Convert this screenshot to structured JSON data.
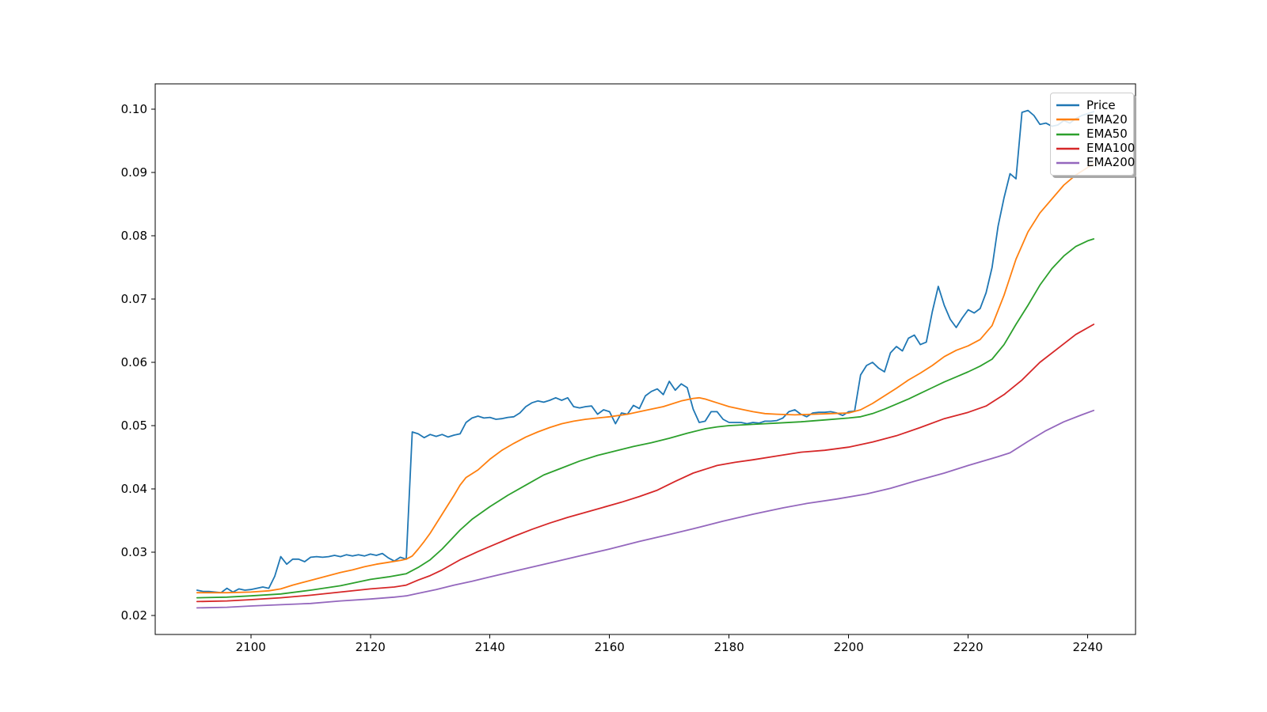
{
  "accent_colors": {
    "price": "#1f77b4",
    "ema20": "#ff7f0e",
    "ema50": "#2ca02c",
    "ema100": "#d62728",
    "ema200": "#9467bd",
    "spine": "#000000",
    "legend_border": "#cccccc"
  },
  "chart_data": {
    "type": "line",
    "title": "",
    "xlabel": "",
    "ylabel": "",
    "grid": false,
    "xlim": [
      2084,
      2248
    ],
    "ylim": [
      0.017,
      0.104
    ],
    "x_ticks": [
      2100,
      2120,
      2140,
      2160,
      2180,
      2200,
      2220,
      2240
    ],
    "x_tick_labels": [
      "2100",
      "2120",
      "2140",
      "2160",
      "2180",
      "2200",
      "2220",
      "2240"
    ],
    "y_ticks": [
      0.02,
      0.03,
      0.04,
      0.05,
      0.06,
      0.07,
      0.08,
      0.09,
      0.1
    ],
    "y_tick_labels": [
      "0.02",
      "0.03",
      "0.04",
      "0.05",
      "0.06",
      "0.07",
      "0.08",
      "0.09",
      "0.10"
    ],
    "legend": {
      "position": "upper right",
      "entries": [
        "Price",
        "EMA20",
        "EMA50",
        "EMA100",
        "EMA200"
      ]
    },
    "series": [
      {
        "name": "Price",
        "color": "#1f77b4",
        "x_start": 2091,
        "x_step": 1,
        "values": [
          0.024,
          0.0238,
          0.0238,
          0.0237,
          0.0236,
          0.0243,
          0.0237,
          0.0242,
          0.024,
          0.0241,
          0.0243,
          0.0245,
          0.0243,
          0.0262,
          0.0293,
          0.0281,
          0.0289,
          0.0289,
          0.0285,
          0.0292,
          0.0293,
          0.0292,
          0.0293,
          0.0295,
          0.0293,
          0.0296,
          0.0294,
          0.0296,
          0.0294,
          0.0297,
          0.0295,
          0.0298,
          0.0291,
          0.0286,
          0.0292,
          0.0289,
          0.049,
          0.0487,
          0.0481,
          0.0486,
          0.0483,
          0.0486,
          0.0482,
          0.0485,
          0.0487,
          0.0505,
          0.0512,
          0.0515,
          0.0512,
          0.0513,
          0.051,
          0.0511,
          0.0513,
          0.0514,
          0.052,
          0.053,
          0.0536,
          0.0539,
          0.0537,
          0.054,
          0.0544,
          0.054,
          0.0544,
          0.053,
          0.0528,
          0.053,
          0.0531,
          0.0518,
          0.0525,
          0.0522,
          0.0503,
          0.052,
          0.0518,
          0.0532,
          0.0527,
          0.0547,
          0.0554,
          0.0558,
          0.0549,
          0.057,
          0.0556,
          0.0566,
          0.056,
          0.0526,
          0.0505,
          0.0507,
          0.0522,
          0.0522,
          0.051,
          0.0505,
          0.0505,
          0.0505,
          0.0503,
          0.0505,
          0.0504,
          0.0507,
          0.0507,
          0.0508,
          0.0512,
          0.0522,
          0.0525,
          0.0518,
          0.0514,
          0.052,
          0.0521,
          0.0521,
          0.0522,
          0.052,
          0.0516,
          0.0522,
          0.0523,
          0.058,
          0.0595,
          0.06,
          0.0591,
          0.0585,
          0.0615,
          0.0625,
          0.0618,
          0.0638,
          0.0643,
          0.0628,
          0.0632,
          0.068,
          0.072,
          0.069,
          0.0668,
          0.0655,
          0.067,
          0.0683,
          0.0678,
          0.0685,
          0.071,
          0.075,
          0.0815,
          0.086,
          0.0898,
          0.089,
          0.0995,
          0.0998,
          0.099,
          0.0976,
          0.0978,
          0.0973,
          0.0975,
          0.0982,
          0.0978,
          0.0985,
          0.099,
          0.0993,
          0.0996
        ]
      },
      {
        "name": "EMA20",
        "color": "#ff7f0e",
        "points": [
          [
            2091,
            0.0236
          ],
          [
            2096,
            0.0236
          ],
          [
            2100,
            0.0237
          ],
          [
            2103,
            0.0239
          ],
          [
            2105,
            0.0242
          ],
          [
            2107,
            0.0248
          ],
          [
            2109,
            0.0253
          ],
          [
            2111,
            0.0258
          ],
          [
            2113,
            0.0263
          ],
          [
            2115,
            0.0268
          ],
          [
            2117,
            0.0272
          ],
          [
            2119,
            0.0277
          ],
          [
            2121,
            0.0281
          ],
          [
            2123,
            0.0284
          ],
          [
            2125,
            0.0287
          ],
          [
            2126,
            0.0289
          ],
          [
            2127,
            0.0294
          ],
          [
            2128,
            0.0305
          ],
          [
            2129,
            0.0317
          ],
          [
            2130,
            0.033
          ],
          [
            2131,
            0.0345
          ],
          [
            2132,
            0.036
          ],
          [
            2133,
            0.0375
          ],
          [
            2134,
            0.039
          ],
          [
            2135,
            0.0406
          ],
          [
            2136,
            0.0418
          ],
          [
            2138,
            0.043
          ],
          [
            2140,
            0.0447
          ],
          [
            2142,
            0.0461
          ],
          [
            2144,
            0.0472
          ],
          [
            2146,
            0.0482
          ],
          [
            2148,
            0.049
          ],
          [
            2150,
            0.0497
          ],
          [
            2152,
            0.0503
          ],
          [
            2154,
            0.0507
          ],
          [
            2156,
            0.051
          ],
          [
            2158,
            0.0512
          ],
          [
            2160,
            0.0514
          ],
          [
            2163,
            0.0518
          ],
          [
            2166,
            0.0524
          ],
          [
            2169,
            0.053
          ],
          [
            2172,
            0.0539
          ],
          [
            2174,
            0.0543
          ],
          [
            2175,
            0.0544
          ],
          [
            2176,
            0.0542
          ],
          [
            2178,
            0.0536
          ],
          [
            2180,
            0.053
          ],
          [
            2182,
            0.0526
          ],
          [
            2184,
            0.0522
          ],
          [
            2186,
            0.0519
          ],
          [
            2188,
            0.0518
          ],
          [
            2191,
            0.0517
          ],
          [
            2194,
            0.0518
          ],
          [
            2197,
            0.0519
          ],
          [
            2200,
            0.052
          ],
          [
            2202,
            0.0525
          ],
          [
            2204,
            0.0535
          ],
          [
            2206,
            0.0547
          ],
          [
            2208,
            0.0559
          ],
          [
            2210,
            0.0572
          ],
          [
            2212,
            0.0583
          ],
          [
            2214,
            0.0595
          ],
          [
            2216,
            0.0609
          ],
          [
            2218,
            0.0619
          ],
          [
            2220,
            0.0626
          ],
          [
            2222,
            0.0636
          ],
          [
            2224,
            0.0658
          ],
          [
            2226,
            0.0706
          ],
          [
            2228,
            0.0763
          ],
          [
            2230,
            0.0806
          ],
          [
            2232,
            0.0836
          ],
          [
            2234,
            0.0858
          ],
          [
            2236,
            0.088
          ],
          [
            2238,
            0.0896
          ],
          [
            2240,
            0.0908
          ],
          [
            2241,
            0.0913
          ]
        ]
      },
      {
        "name": "EMA50",
        "color": "#2ca02c",
        "points": [
          [
            2091,
            0.0228
          ],
          [
            2096,
            0.0229
          ],
          [
            2100,
            0.0231
          ],
          [
            2105,
            0.0234
          ],
          [
            2110,
            0.024
          ],
          [
            2115,
            0.0247
          ],
          [
            2120,
            0.0257
          ],
          [
            2123,
            0.0261
          ],
          [
            2126,
            0.0266
          ],
          [
            2128,
            0.0276
          ],
          [
            2130,
            0.0288
          ],
          [
            2132,
            0.0305
          ],
          [
            2134,
            0.0325
          ],
          [
            2135,
            0.0335
          ],
          [
            2137,
            0.0352
          ],
          [
            2140,
            0.0372
          ],
          [
            2143,
            0.039
          ],
          [
            2146,
            0.0406
          ],
          [
            2149,
            0.0422
          ],
          [
            2152,
            0.0433
          ],
          [
            2155,
            0.0444
          ],
          [
            2158,
            0.0453
          ],
          [
            2161,
            0.046
          ],
          [
            2164,
            0.0467
          ],
          [
            2167,
            0.0473
          ],
          [
            2170,
            0.048
          ],
          [
            2173,
            0.0488
          ],
          [
            2176,
            0.0495
          ],
          [
            2178,
            0.0498
          ],
          [
            2180,
            0.05
          ],
          [
            2184,
            0.0502
          ],
          [
            2188,
            0.0504
          ],
          [
            2192,
            0.0506
          ],
          [
            2196,
            0.0509
          ],
          [
            2200,
            0.0512
          ],
          [
            2202,
            0.0514
          ],
          [
            2204,
            0.0519
          ],
          [
            2206,
            0.0526
          ],
          [
            2208,
            0.0534
          ],
          [
            2210,
            0.0542
          ],
          [
            2212,
            0.0551
          ],
          [
            2214,
            0.056
          ],
          [
            2216,
            0.0569
          ],
          [
            2218,
            0.0577
          ],
          [
            2220,
            0.0585
          ],
          [
            2222,
            0.0594
          ],
          [
            2224,
            0.0605
          ],
          [
            2226,
            0.0628
          ],
          [
            2228,
            0.066
          ],
          [
            2230,
            0.069
          ],
          [
            2232,
            0.0722
          ],
          [
            2234,
            0.0748
          ],
          [
            2236,
            0.0768
          ],
          [
            2238,
            0.0783
          ],
          [
            2240,
            0.0792
          ],
          [
            2241,
            0.0795
          ]
        ]
      },
      {
        "name": "EMA100",
        "color": "#d62728",
        "points": [
          [
            2091,
            0.0222
          ],
          [
            2096,
            0.0223
          ],
          [
            2100,
            0.0225
          ],
          [
            2105,
            0.0228
          ],
          [
            2110,
            0.0232
          ],
          [
            2115,
            0.0237
          ],
          [
            2120,
            0.0242
          ],
          [
            2124,
            0.0245
          ],
          [
            2126,
            0.0248
          ],
          [
            2128,
            0.0256
          ],
          [
            2130,
            0.0263
          ],
          [
            2132,
            0.0272
          ],
          [
            2135,
            0.0288
          ],
          [
            2138,
            0.0301
          ],
          [
            2141,
            0.0313
          ],
          [
            2144,
            0.0325
          ],
          [
            2147,
            0.0336
          ],
          [
            2150,
            0.0346
          ],
          [
            2153,
            0.0355
          ],
          [
            2156,
            0.0363
          ],
          [
            2159,
            0.0371
          ],
          [
            2162,
            0.0379
          ],
          [
            2165,
            0.0388
          ],
          [
            2168,
            0.0398
          ],
          [
            2171,
            0.0412
          ],
          [
            2174,
            0.0425
          ],
          [
            2176,
            0.0431
          ],
          [
            2178,
            0.0437
          ],
          [
            2181,
            0.0442
          ],
          [
            2184,
            0.0446
          ],
          [
            2188,
            0.0452
          ],
          [
            2192,
            0.0458
          ],
          [
            2196,
            0.0461
          ],
          [
            2200,
            0.0466
          ],
          [
            2204,
            0.0474
          ],
          [
            2208,
            0.0484
          ],
          [
            2212,
            0.0497
          ],
          [
            2216,
            0.0511
          ],
          [
            2220,
            0.0521
          ],
          [
            2223,
            0.0531
          ],
          [
            2226,
            0.0549
          ],
          [
            2229,
            0.0572
          ],
          [
            2232,
            0.06
          ],
          [
            2235,
            0.0622
          ],
          [
            2238,
            0.0644
          ],
          [
            2241,
            0.066
          ]
        ]
      },
      {
        "name": "EMA200",
        "color": "#9467bd",
        "points": [
          [
            2091,
            0.0212
          ],
          [
            2096,
            0.0213
          ],
          [
            2100,
            0.0215
          ],
          [
            2105,
            0.0217
          ],
          [
            2110,
            0.0219
          ],
          [
            2115,
            0.0223
          ],
          [
            2120,
            0.0226
          ],
          [
            2124,
            0.0229
          ],
          [
            2126,
            0.0231
          ],
          [
            2128,
            0.0235
          ],
          [
            2131,
            0.0241
          ],
          [
            2134,
            0.0248
          ],
          [
            2137,
            0.0254
          ],
          [
            2140,
            0.0261
          ],
          [
            2145,
            0.0272
          ],
          [
            2150,
            0.0283
          ],
          [
            2155,
            0.0294
          ],
          [
            2160,
            0.0305
          ],
          [
            2165,
            0.0317
          ],
          [
            2170,
            0.0328
          ],
          [
            2174,
            0.0337
          ],
          [
            2179,
            0.0349
          ],
          [
            2184,
            0.036
          ],
          [
            2189,
            0.037
          ],
          [
            2193,
            0.0377
          ],
          [
            2198,
            0.0384
          ],
          [
            2203,
            0.0392
          ],
          [
            2207,
            0.0401
          ],
          [
            2211,
            0.0412
          ],
          [
            2216,
            0.0425
          ],
          [
            2220,
            0.0437
          ],
          [
            2225,
            0.0451
          ],
          [
            2227,
            0.0457
          ],
          [
            2230,
            0.0475
          ],
          [
            2233,
            0.0492
          ],
          [
            2236,
            0.0506
          ],
          [
            2239,
            0.0517
          ],
          [
            2241,
            0.0524
          ]
        ]
      }
    ]
  }
}
